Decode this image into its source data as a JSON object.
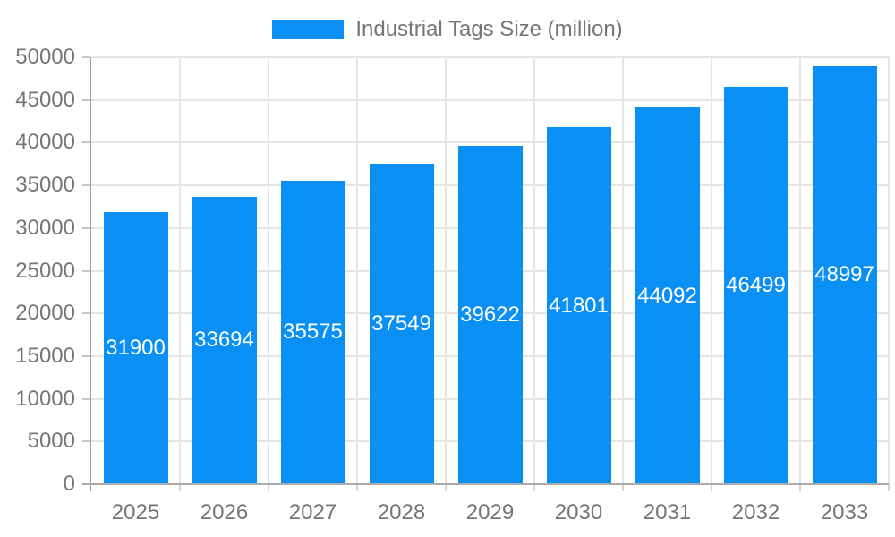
{
  "legend": {
    "label": "Industrial Tags Size (million)"
  },
  "chart_data": {
    "type": "bar",
    "title": "Industrial Tags Size (million)",
    "xlabel": "",
    "ylabel": "",
    "categories": [
      "2025",
      "2026",
      "2027",
      "2028",
      "2029",
      "2030",
      "2031",
      "2032",
      "2033"
    ],
    "values": [
      31900,
      33694,
      35575,
      37549,
      39622,
      41801,
      44092,
      46499,
      48997
    ],
    "bar_value_labels": [
      "31900",
      "33694",
      "35575",
      "37549",
      "39622",
      "41801",
      "44092",
      "46499",
      "48997"
    ],
    "ylim": [
      0,
      50000
    ],
    "ytick_step": 5000,
    "ytick_labels": [
      "0",
      "5000",
      "10000",
      "15000",
      "20000",
      "25000",
      "30000",
      "35000",
      "40000",
      "45000",
      "50000"
    ],
    "grid": true,
    "legend_position": "top",
    "colors": {
      "bar": "#0a90f5",
      "bar_value_label": "#ffffff",
      "axis_text": "#757575",
      "grid_line": "#e4e4e4",
      "y_axis_line": "#9e9e9e",
      "x_axis_line": "#ababab"
    }
  }
}
